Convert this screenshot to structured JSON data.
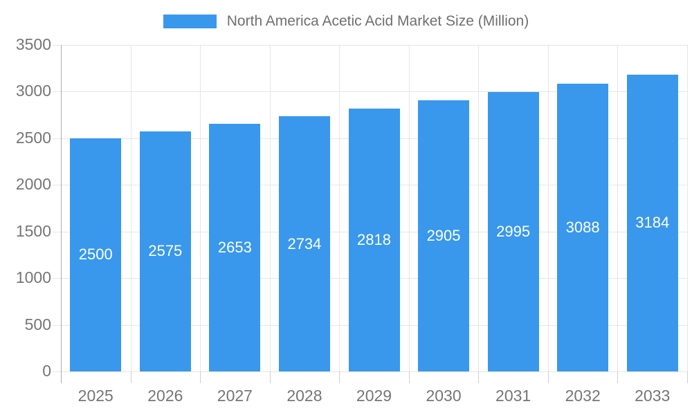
{
  "chart_data": {
    "type": "bar",
    "title": "North America Acetic Acid Market Size (Million)",
    "categories": [
      "2025",
      "2026",
      "2027",
      "2028",
      "2029",
      "2030",
      "2031",
      "2032",
      "2033"
    ],
    "values": [
      2500,
      2575,
      2653,
      2734,
      2818,
      2905,
      2995,
      3088,
      3184
    ],
    "series": [
      {
        "name": "North America Acetic Acid Market Size (Million)",
        "values": [
          2500,
          2575,
          2653,
          2734,
          2818,
          2905,
          2995,
          3088,
          3184
        ]
      }
    ],
    "xlabel": "",
    "ylabel": "",
    "ylim": [
      0,
      3500
    ],
    "ytick_step": 500,
    "ytick_labels": [
      "0",
      "500",
      "1000",
      "1500",
      "2000",
      "2500",
      "3000",
      "3500"
    ],
    "grid": true,
    "legend_position": "top-center",
    "bar_labels_inside": true,
    "colors": {
      "bar": "#3998ec",
      "bar_value_text": "#ffffff",
      "axis_text": "#757575",
      "legend_text": "#6f6f6f",
      "grid_line": "#e6e6e6",
      "axis_line": "#ababab",
      "tick_line": "#cfcfcf",
      "background": "#ffffff"
    }
  }
}
